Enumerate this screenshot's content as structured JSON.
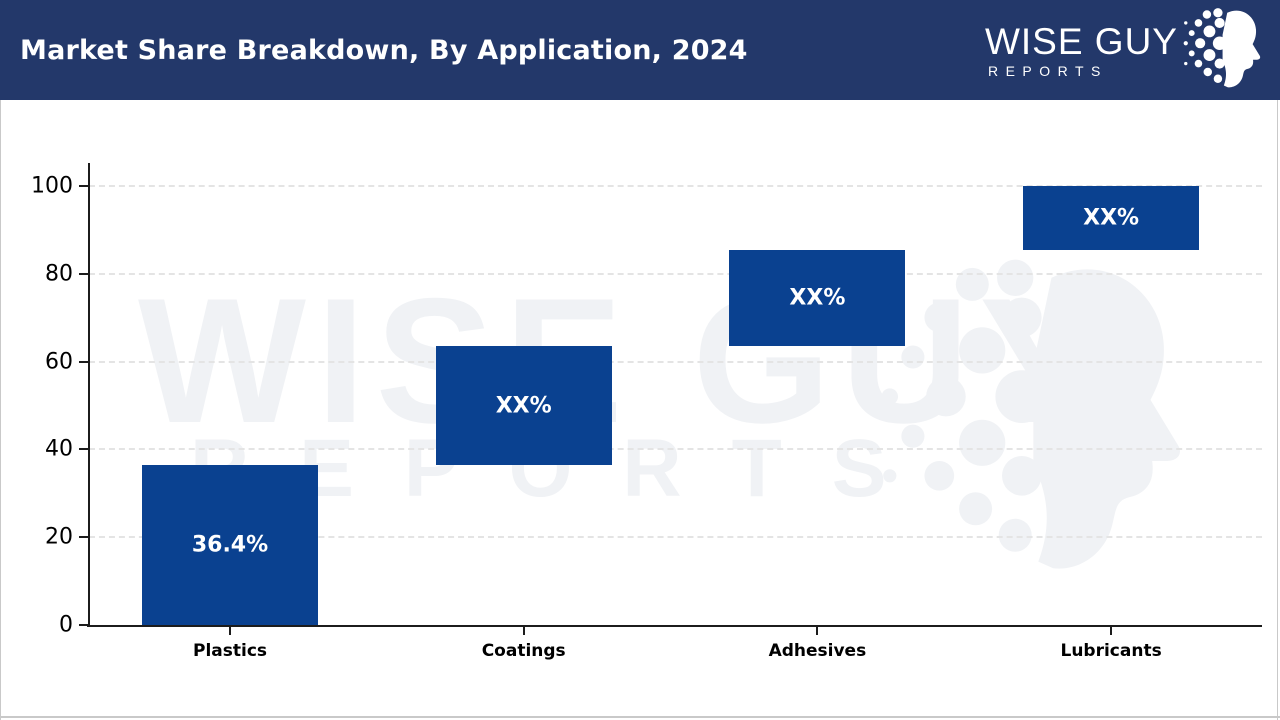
{
  "header": {
    "title": "Market Share Breakdown, By Application, 2024",
    "brand_line1": "WISE GUY",
    "brand_line2": "REPORTS"
  },
  "watermark": {
    "line1": "WISE GUY",
    "line2": "REPORTS"
  },
  "colors": {
    "header_bg": "#23386a",
    "bar_blue": "#0a4190",
    "bar_label_text": "#ffffff",
    "axis": "#1c1c1c",
    "gridline": "#e4e4e4",
    "watermark": "#f0f2f5"
  },
  "chart_data": {
    "type": "bar",
    "subtype": "waterfall",
    "title": "Market Share Breakdown, By Application, 2024",
    "categories": [
      "Plastics",
      "Coatings",
      "Adhesives",
      "Lubricants"
    ],
    "segments": [
      {
        "category": "Plastics",
        "start": 0,
        "end": 36.4,
        "label": "36.4%"
      },
      {
        "category": "Coatings",
        "start": 36.4,
        "end": 63.5,
        "label": "XX%"
      },
      {
        "category": "Adhesives",
        "start": 63.5,
        "end": 85.4,
        "label": "XX%"
      },
      {
        "category": "Lubricants",
        "start": 85.4,
        "end": 100,
        "label": "XX%"
      }
    ],
    "yticks": [
      0,
      20,
      40,
      60,
      80,
      100
    ],
    "ylim": [
      0,
      105
    ],
    "xlabel": "",
    "ylabel": "",
    "grid": "horizontal-dashed",
    "legend": "none"
  }
}
